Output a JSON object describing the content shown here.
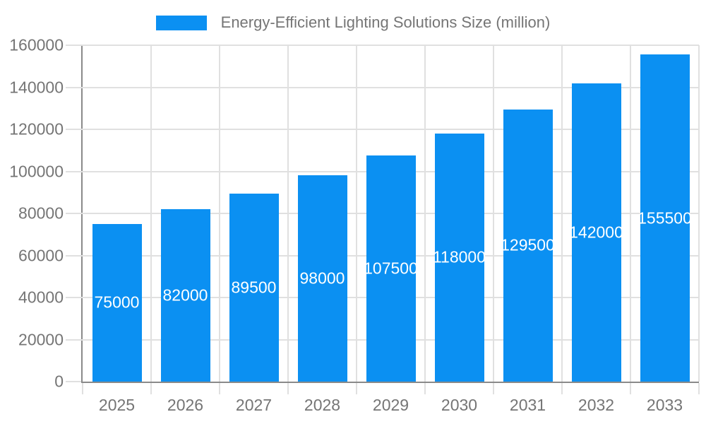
{
  "legend": {
    "label": "Energy-Efficient Lighting Solutions Size (million)"
  },
  "chart_data": {
    "type": "bar",
    "title": "Energy-Efficient Lighting Solutions Size (million)",
    "categories": [
      "2025",
      "2026",
      "2027",
      "2028",
      "2029",
      "2030",
      "2031",
      "2032",
      "2033"
    ],
    "values": [
      75000,
      82000,
      89500,
      98000,
      107500,
      118000,
      129500,
      142000,
      155500
    ],
    "bar_labels": [
      "75000",
      "82000",
      "89500",
      "98000",
      "107500",
      "118000",
      "129500",
      "142000",
      "155500"
    ],
    "xlabel": "",
    "ylabel": "",
    "ylim": [
      0,
      160000
    ],
    "ytick_step": 20000,
    "ytick_labels": [
      "0",
      "20000",
      "40000",
      "60000",
      "80000",
      "100000",
      "120000",
      "140000",
      "160000"
    ],
    "grid": true,
    "legend_position": "top-center",
    "value_label_position": "inside-middle",
    "colors": {
      "bar": "#0b90f2",
      "bar_label": "#ffffff",
      "axis_line": "#8a8a8a",
      "gridline": "#e0e0e0",
      "tick_text": "#757575",
      "background": "#ffffff"
    }
  }
}
